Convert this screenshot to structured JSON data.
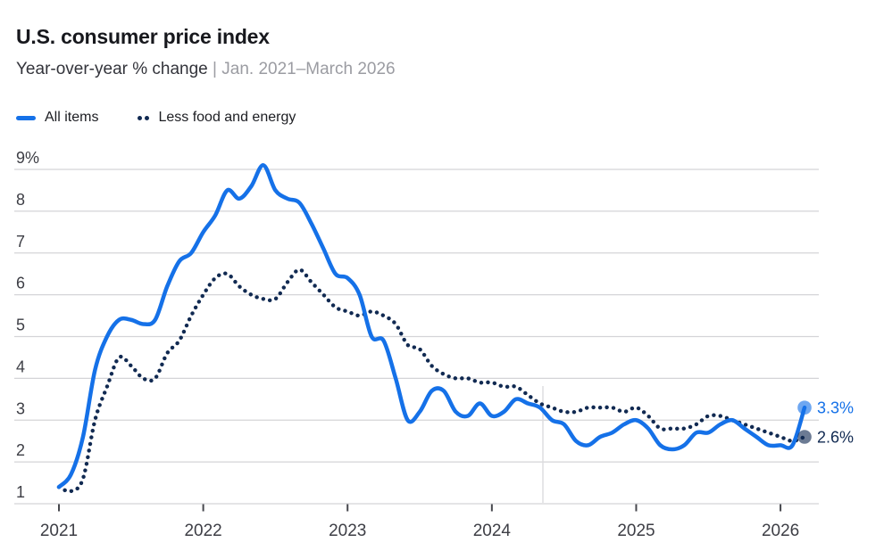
{
  "header": {
    "title": "U.S. consumer price index",
    "subtitle_main": "Year-over-year % change ",
    "subtitle_separator": "|",
    "subtitle_range": " Jan. 2021–March 2026"
  },
  "legend": {
    "items": [
      {
        "label": "All items",
        "swatch": "solid-line",
        "color": "#1571e8"
      },
      {
        "label": "Less food and energy",
        "swatch": "dotted-line",
        "color": "#112a52"
      }
    ]
  },
  "colors": {
    "all_items_blue": "#1571e8",
    "core_navy": "#112a52",
    "grid_gray": "#d4d4d7",
    "axis_text": "#3d3e45",
    "title_text": "#17181d",
    "subtitle_muted": "#9b9ca2"
  },
  "chart_data": {
    "type": "line",
    "title": "U.S. consumer price index",
    "subtitle": "Year-over-year % change | Jan. 2021–March 2026",
    "x_start": "2021-01",
    "x_end": "2026-03",
    "x_unit": "month",
    "x_tick_labels": [
      "2021",
      "2022",
      "2023",
      "2024",
      "2025",
      "2026"
    ],
    "y_tick_labels": [
      "9%",
      "8",
      "7",
      "6",
      "5",
      "4",
      "3",
      "2",
      "1"
    ],
    "ylim": [
      1,
      9
    ],
    "grid": "horizontal",
    "legend_position": "top-left",
    "series": [
      {
        "name": "All items",
        "style": "solid",
        "color": "#1571e8",
        "end_label": "3.3%",
        "end_value": 3.3,
        "values": [
          1.4,
          1.7,
          2.6,
          4.2,
          5.0,
          5.4,
          5.4,
          5.3,
          5.4,
          6.2,
          6.8,
          7.0,
          7.5,
          7.9,
          8.5,
          8.3,
          8.6,
          9.1,
          8.5,
          8.3,
          8.2,
          7.7,
          7.1,
          6.5,
          6.4,
          6.0,
          5.0,
          4.9,
          4.0,
          3.0,
          3.2,
          3.7,
          3.7,
          3.2,
          3.1,
          3.4,
          3.1,
          3.2,
          3.5,
          3.4,
          3.3,
          3.0,
          2.9,
          2.5,
          2.4,
          2.6,
          2.7,
          2.9,
          3.0,
          2.8,
          2.4,
          2.3,
          2.4,
          2.7,
          2.7,
          2.9,
          3.0,
          2.8,
          2.6,
          2.4,
          2.4,
          2.4,
          3.3
        ]
      },
      {
        "name": "Less food and energy",
        "style": "dotted",
        "color": "#112a52",
        "end_label": "2.6%",
        "end_value": 2.6,
        "values": [
          1.4,
          1.3,
          1.6,
          3.0,
          3.8,
          4.5,
          4.3,
          4.0,
          4.0,
          4.6,
          4.9,
          5.5,
          6.0,
          6.4,
          6.5,
          6.2,
          6.0,
          5.9,
          5.9,
          6.3,
          6.6,
          6.3,
          6.0,
          5.7,
          5.6,
          5.5,
          5.6,
          5.5,
          5.3,
          4.8,
          4.7,
          4.3,
          4.1,
          4.0,
          4.0,
          3.9,
          3.9,
          3.8,
          3.8,
          3.6,
          3.4,
          3.3,
          3.2,
          3.2,
          3.3,
          3.3,
          3.3,
          3.2,
          3.3,
          3.1,
          2.8,
          2.8,
          2.8,
          2.9,
          3.1,
          3.1,
          3.0,
          2.9,
          2.8,
          2.7,
          2.6,
          2.5,
          2.6
        ]
      }
    ]
  }
}
